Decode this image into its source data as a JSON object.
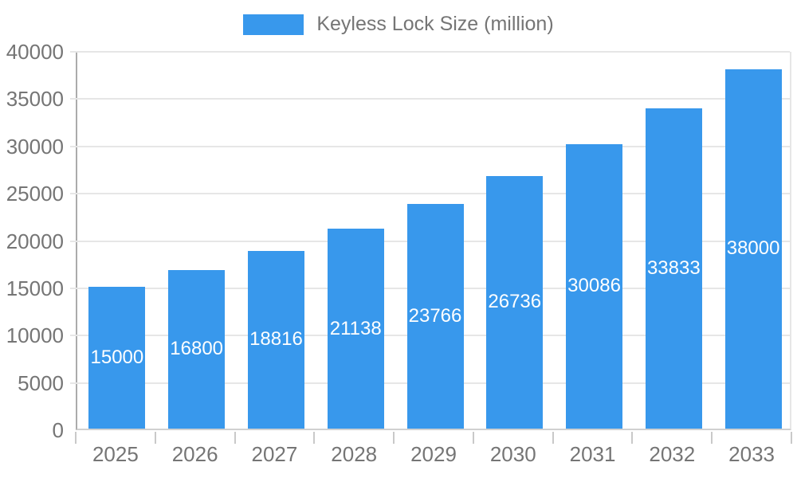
{
  "legend": {
    "label": "Keyless Lock Size (million)"
  },
  "colors": {
    "bar": "#3898EC",
    "grid": "#E6E6E6",
    "axis": "#ABABAB",
    "tick": "#C9C9C9",
    "text": "#757575",
    "value_label": "#FFFFFF",
    "background": "#FFFFFF"
  },
  "chart_data": {
    "type": "bar",
    "title": "Keyless Lock Size (million)",
    "categories": [
      "2025",
      "2026",
      "2027",
      "2028",
      "2029",
      "2030",
      "2031",
      "2032",
      "2033"
    ],
    "values": [
      15000,
      16800,
      18816,
      21138,
      23766,
      26736,
      30086,
      33833,
      38000
    ],
    "xlabel": "",
    "ylabel": "",
    "ylim": [
      0,
      40000
    ],
    "yticks": [
      0,
      5000,
      10000,
      15000,
      20000,
      25000,
      30000,
      35000,
      40000
    ],
    "grid": true,
    "legend_position": "top",
    "value_labels": "inside-center-white"
  }
}
